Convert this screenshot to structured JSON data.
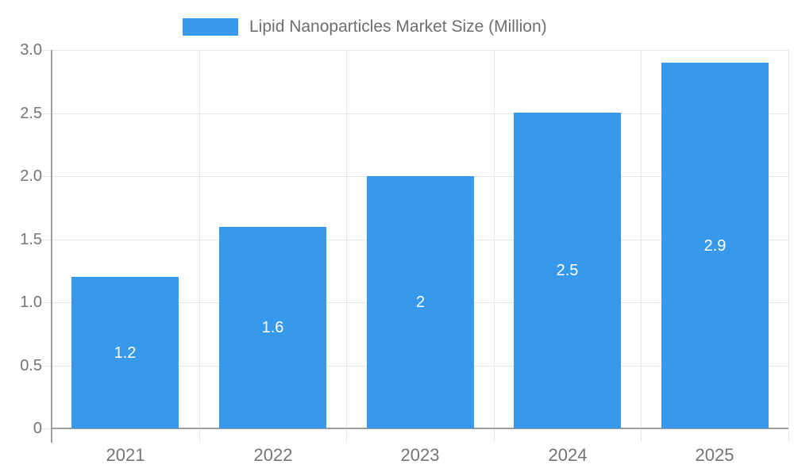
{
  "legend": {
    "label": "Lipid Nanoparticles Market Size (Million)"
  },
  "chart_data": {
    "type": "bar",
    "title": "Lipid Nanoparticles Market Size (Million)",
    "series_name": "Lipid Nanoparticles Market Size (Million)",
    "categories": [
      "2021",
      "2022",
      "2023",
      "2024",
      "2025"
    ],
    "values": [
      1.2,
      1.6,
      2,
      2.5,
      2.9
    ],
    "value_labels": [
      "1.2",
      "1.6",
      "2",
      "2.5",
      "2.9"
    ],
    "xlabel": "",
    "ylabel": "",
    "ylim": [
      0,
      3.0
    ],
    "y_tick_values": [
      0,
      0.5,
      1.0,
      1.5,
      2.0,
      2.5,
      3.0
    ],
    "y_tick_labels": [
      "0",
      "0.5",
      "1.0",
      "1.5",
      "2.0",
      "2.5",
      "3.0"
    ],
    "grid": true,
    "legend_position": "top",
    "colors": {
      "bar": "#3899EC",
      "grid": "#E6E6E6",
      "axis": "#9E9E9E",
      "tick_label": "#757575",
      "value_label": "#FFFFFF",
      "legend_text": "#6E6E6E",
      "background": "#FFFFFF"
    }
  }
}
